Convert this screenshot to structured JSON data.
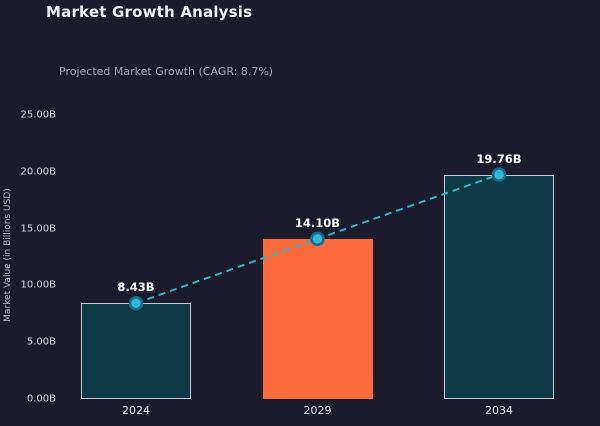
{
  "header": {
    "title": "Market Growth Analysis",
    "subtitle": "Projected Market Growth (CAGR: 8.7%)"
  },
  "chart_data": {
    "type": "bar",
    "title": "Market Growth Analysis",
    "subtitle": "Projected Market Growth (CAGR: 8.7%)",
    "categories": [
      "2024",
      "2029",
      "2034"
    ],
    "values": [
      8.43,
      14.1,
      19.76
    ],
    "value_labels": [
      "8.43B",
      "14.10B",
      "19.76B"
    ],
    "xlabel": "",
    "ylabel": "Market Value (in Billions USD)",
    "ylim": [
      0,
      25
    ],
    "yticks": [
      0,
      5,
      10,
      15,
      20,
      25
    ],
    "ytick_labels": [
      "0.00B",
      "5.00B",
      "10.00B",
      "15.00B",
      "20.00B",
      "25.00B"
    ],
    "grid": false,
    "legend": "none",
    "overlay_trend_line": {
      "type": "line",
      "style": "dashed",
      "x": [
        "2024",
        "2029",
        "2034"
      ],
      "y": [
        8.43,
        14.1,
        19.76
      ]
    },
    "colors": {
      "background": "#1b1b2c",
      "bar_fills": [
        "#0e3a47",
        "#fb6a3b",
        "#0e3a47"
      ],
      "bar_borders": [
        "#c6cbd4",
        "#fb6a3b",
        "#c6cbd4"
      ],
      "trend_line": "#2fb6c9",
      "marker_fill": "#37b6d8",
      "marker_stroke": "#166e8d",
      "title_text": "#f2f2f6",
      "subtitle_text": "#a4a4b0",
      "tick_text": "#d9dae0"
    }
  }
}
